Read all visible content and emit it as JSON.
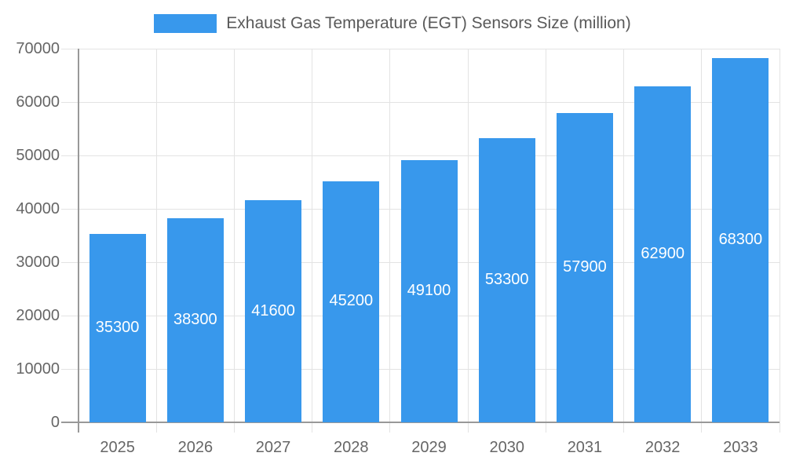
{
  "legend": {
    "swatch_color": "#3898ec",
    "label": "Exhaust Gas Temperature (EGT) Sensors Size (million)"
  },
  "colors": {
    "bar": "#3898ec",
    "grid": "#e3e3e3",
    "axis": "#999999",
    "tick_text": "#666666",
    "value_label_text": "#ffffff",
    "title_text": "#595959",
    "background": "#ffffff"
  },
  "chart_data": {
    "type": "bar",
    "title": "Exhaust Gas Temperature (EGT) Sensors Size (million)",
    "categories": [
      "2025",
      "2026",
      "2027",
      "2028",
      "2029",
      "2030",
      "2031",
      "2032",
      "2033"
    ],
    "values": [
      35300,
      38300,
      41600,
      45200,
      49100,
      53300,
      57900,
      62900,
      68300
    ],
    "value_labels": [
      "35300",
      "38300",
      "41600",
      "45200",
      "49100",
      "53300",
      "57900",
      "62900",
      "68300"
    ],
    "xlabel": "",
    "ylabel": "",
    "ylim": [
      0,
      70000
    ],
    "ytick_step": 10000,
    "yticks": [
      "0",
      "10000",
      "20000",
      "30000",
      "40000",
      "50000",
      "60000",
      "70000"
    ],
    "grid": true,
    "legend_position": "top",
    "value_label_position": "inside-center"
  }
}
